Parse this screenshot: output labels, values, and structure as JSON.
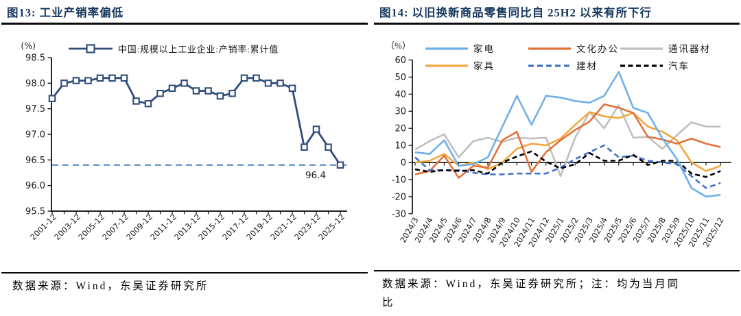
{
  "panels": [
    {
      "title": "图13:  工业产销率偏低",
      "source": "数据来源：Wind，东吴证券研究所"
    },
    {
      "title": "图14:  以旧换新商品零售同比自 25H2 以来有所下行",
      "source": "数据来源：Wind，东吴证券研究所；注：均为当月同比"
    }
  ],
  "chart_data": [
    {
      "type": "line",
      "name": "industrial-sales-ratio",
      "title": "图13:  工业产销率偏低",
      "y_unit": "(%)",
      "legend": [
        "中国:规模以上工业企业:产销率:累计值"
      ],
      "x": [
        "2001-12",
        "2002-12",
        "2003-12",
        "2004-12",
        "2005-12",
        "2006-12",
        "2007-12",
        "2008-12",
        "2009-12",
        "2010-12",
        "2011-12",
        "2012-12",
        "2013-12",
        "2014-12",
        "2015-12",
        "2016-12",
        "2017-12",
        "2018-12",
        "2019-12",
        "2020-12",
        "2021-12",
        "2022-12",
        "2023-12",
        "2024-12",
        "2025-12"
      ],
      "x_tick_labels": [
        "2001-12",
        "2003-12",
        "2005-12",
        "2007-12",
        "2009-12",
        "2011-12",
        "2013-12",
        "2015-12",
        "2017-12",
        "2019-12",
        "2021-12",
        "2023-12",
        "2025-12"
      ],
      "series": [
        {
          "name": "中国:规模以上工业企业:产销率:累计值",
          "color": "#2F4C7C",
          "marker": "square",
          "values": [
            97.7,
            98.0,
            98.05,
            98.05,
            98.1,
            98.1,
            98.1,
            97.65,
            97.6,
            97.8,
            97.9,
            98.0,
            97.85,
            97.85,
            97.75,
            97.8,
            98.1,
            98.1,
            98.0,
            98.0,
            97.9,
            96.75,
            97.1,
            96.75,
            96.4
          ]
        }
      ],
      "reference_line": {
        "value": 96.4,
        "label": "96.4",
        "color": "#4F81BD",
        "style": "dashed"
      },
      "ylim": [
        95.5,
        98.5
      ],
      "ytick_values": [
        98.5,
        98.0,
        97.5,
        97.0,
        96.5,
        96.0,
        95.5
      ],
      "ytick_labels": [
        "98.5",
        "98.0",
        "97.5",
        "97.0",
        "96.5",
        "96.0",
        "95.5"
      ],
      "grid": false,
      "legend_position": "top"
    },
    {
      "type": "line",
      "name": "trade-in-retail-yoy",
      "title": "图14:  以旧换新商品零售同比自 25H2 以来有所下行",
      "y_unit": "（%）",
      "x": [
        "2024/3",
        "2024/4",
        "2024/5",
        "2024/6",
        "2024/7",
        "2024/8",
        "2024/9",
        "2024/10",
        "2024/11",
        "2024/12",
        "2025/1",
        "2025/2",
        "2025/3",
        "2025/4",
        "2025/5",
        "2025/6",
        "2025/7",
        "2025/8",
        "2025/9",
        "2025/10",
        "2025/11",
        "2025/12"
      ],
      "series": [
        {
          "name": "家电",
          "color": "#6FB0E8",
          "style": "solid",
          "dash": "",
          "values": [
            6,
            5,
            13,
            -2,
            -1,
            3,
            21,
            39,
            22,
            39,
            38,
            36,
            35,
            39,
            53,
            32,
            29,
            14,
            2,
            -15,
            -20,
            -19
          ]
        },
        {
          "name": "文化办公",
          "color": "#E2713A",
          "style": "solid",
          "dash": "",
          "values": [
            -7,
            -5,
            4,
            -9,
            -2,
            -3,
            13,
            18,
            -5.5,
            6,
            13,
            19,
            24,
            34,
            32,
            29,
            15,
            13.5,
            11,
            14,
            11,
            9
          ]
        },
        {
          "name": "通讯器材",
          "color": "#BFBFBF",
          "style": "solid",
          "dash": "",
          "values": [
            7.5,
            12.5,
            16.5,
            3,
            12.5,
            14.5,
            12,
            14.5,
            14,
            14.5,
            -8,
            14.5,
            29.5,
            20,
            33.5,
            14.5,
            15,
            8,
            16,
            23.5,
            21,
            21
          ]
        },
        {
          "name": "家具",
          "color": "#F3A83D",
          "style": "solid",
          "dash": "",
          "values": [
            0,
            1,
            5,
            -2,
            0,
            -4,
            0,
            8,
            11,
            10,
            14,
            22,
            29.5,
            27,
            26,
            29,
            21,
            18,
            13,
            0,
            -5,
            -2
          ]
        },
        {
          "name": "建材",
          "color": "#4472C4",
          "style": "dashed",
          "dash": "8,5",
          "values": [
            3,
            -4.5,
            -4.5,
            -4.5,
            -6,
            -7,
            -7,
            -6.5,
            -6.5,
            -6.5,
            -3,
            2,
            6,
            10,
            3,
            4,
            1,
            0,
            -1,
            -8,
            -15,
            -12
          ]
        },
        {
          "name": "汽车",
          "color": "#000000",
          "style": "dashed",
          "dash": "7,4.5",
          "values": [
            -4,
            -5.5,
            -4.5,
            -5,
            -4.5,
            -6.5,
            0,
            3.5,
            6.5,
            0.5,
            -3.5,
            -1,
            5.5,
            1,
            1,
            4.5,
            -1.5,
            1,
            1,
            -6.5,
            -8.5,
            -5
          ]
        }
      ],
      "ylim": [
        -30,
        60
      ],
      "ytick_values": [
        60,
        50,
        40,
        30,
        20,
        10,
        0,
        -10,
        -20,
        -30
      ],
      "ytick_labels": [
        "60",
        "50",
        "40",
        "30",
        "20",
        "10",
        "0",
        "-10",
        "-20",
        "-30"
      ],
      "grid": false,
      "legend_position": "top",
      "legend_rows": [
        [
          "家电",
          "文化办公",
          "通讯器材"
        ],
        [
          "家具",
          "建材",
          "汽车"
        ]
      ]
    }
  ]
}
